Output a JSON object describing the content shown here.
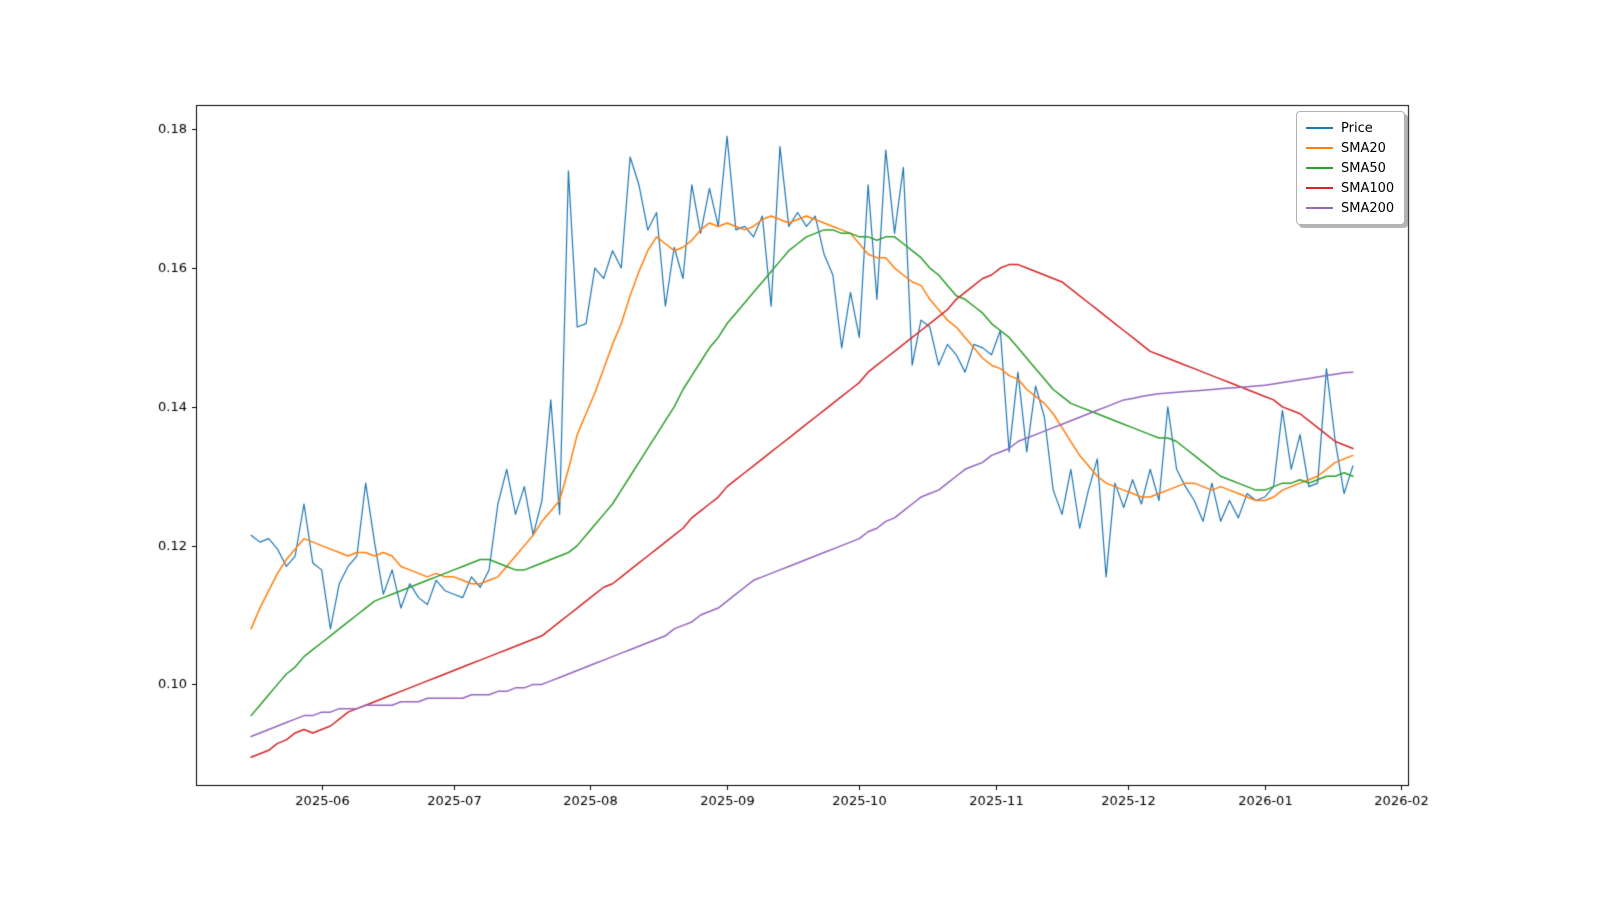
{
  "figure": {
    "background_color": "#ffffff",
    "axes_edge_color": "#000000"
  },
  "chart_data": {
    "type": "line",
    "title": "",
    "xlabel": "",
    "ylabel": "",
    "grid": false,
    "legend_position": "upper right",
    "x_axis": {
      "start_date": "2025-05-16",
      "step_days": 2,
      "domain_days": [
        -12.5,
        262.5
      ],
      "ticks": [
        {
          "label": "2025-06",
          "date": "2025-06-01"
        },
        {
          "label": "2025-07",
          "date": "2025-07-01"
        },
        {
          "label": "2025-08",
          "date": "2025-08-01"
        },
        {
          "label": "2025-09",
          "date": "2025-09-01"
        },
        {
          "label": "2025-10",
          "date": "2025-10-01"
        },
        {
          "label": "2025-11",
          "date": "2025-11-01"
        },
        {
          "label": "2025-12",
          "date": "2025-12-01"
        },
        {
          "label": "2026-01",
          "date": "2026-01-01"
        },
        {
          "label": "2026-02",
          "date": "2026-02-01"
        }
      ]
    },
    "y_axis": {
      "domain": [
        0.0855,
        0.1835
      ],
      "ticks": [
        {
          "label": "0.10",
          "value": 0.1
        },
        {
          "label": "0.12",
          "value": 0.12
        },
        {
          "label": "0.14",
          "value": 0.14
        },
        {
          "label": "0.16",
          "value": 0.16
        },
        {
          "label": "0.18",
          "value": 0.18
        }
      ]
    },
    "dates": [
      "2025-05-16",
      "2025-05-18",
      "2025-05-20",
      "2025-05-22",
      "2025-05-24",
      "2025-05-26",
      "2025-05-28",
      "2025-05-30",
      "2025-06-01",
      "2025-06-03",
      "2025-06-05",
      "2025-06-07",
      "2025-06-09",
      "2025-06-11",
      "2025-06-13",
      "2025-06-15",
      "2025-06-17",
      "2025-06-19",
      "2025-06-21",
      "2025-06-23",
      "2025-06-25",
      "2025-06-27",
      "2025-06-29",
      "2025-07-01",
      "2025-07-03",
      "2025-07-05",
      "2025-07-07",
      "2025-07-09",
      "2025-07-11",
      "2025-07-13",
      "2025-07-15",
      "2025-07-17",
      "2025-07-19",
      "2025-07-21",
      "2025-07-23",
      "2025-07-25",
      "2025-07-27",
      "2025-07-29",
      "2025-07-31",
      "2025-08-02",
      "2025-08-04",
      "2025-08-06",
      "2025-08-08",
      "2025-08-10",
      "2025-08-12",
      "2025-08-14",
      "2025-08-16",
      "2025-08-18",
      "2025-08-20",
      "2025-08-22",
      "2025-08-24",
      "2025-08-26",
      "2025-08-28",
      "2025-08-30",
      "2025-09-01",
      "2025-09-03",
      "2025-09-05",
      "2025-09-07",
      "2025-09-09",
      "2025-09-11",
      "2025-09-13",
      "2025-09-15",
      "2025-09-17",
      "2025-09-19",
      "2025-09-21",
      "2025-09-23",
      "2025-09-25",
      "2025-09-27",
      "2025-09-29",
      "2025-10-01",
      "2025-10-03",
      "2025-10-05",
      "2025-10-07",
      "2025-10-09",
      "2025-10-11",
      "2025-10-13",
      "2025-10-15",
      "2025-10-17",
      "2025-10-19",
      "2025-10-21",
      "2025-10-23",
      "2025-10-25",
      "2025-10-27",
      "2025-10-29",
      "2025-10-31",
      "2025-11-02",
      "2025-11-04",
      "2025-11-06",
      "2025-11-08",
      "2025-11-10",
      "2025-11-12",
      "2025-11-14",
      "2025-11-16",
      "2025-11-18",
      "2025-11-20",
      "2025-11-22",
      "2025-11-24",
      "2025-11-26",
      "2025-11-28",
      "2025-11-30",
      "2025-12-02",
      "2025-12-04",
      "2025-12-06",
      "2025-12-08",
      "2025-12-10",
      "2025-12-12",
      "2025-12-14",
      "2025-12-16",
      "2025-12-18",
      "2025-12-20",
      "2025-12-22",
      "2025-12-24",
      "2025-12-26",
      "2025-12-28",
      "2025-12-30",
      "2026-01-01",
      "2026-01-03",
      "2026-01-05",
      "2026-01-07",
      "2026-01-09",
      "2026-01-11",
      "2026-01-13",
      "2026-01-15",
      "2026-01-17",
      "2026-01-19",
      "2026-01-21"
    ],
    "series": [
      {
        "name": "Price",
        "color": "#1f77b4",
        "line_width": 1.2,
        "values": [
          0.1215,
          0.1205,
          0.121,
          0.1195,
          0.117,
          0.1185,
          0.126,
          0.1175,
          0.1165,
          0.108,
          0.1145,
          0.117,
          0.1185,
          0.129,
          0.1205,
          0.113,
          0.1165,
          0.111,
          0.1145,
          0.1125,
          0.1115,
          0.115,
          0.1135,
          0.113,
          0.1125,
          0.1155,
          0.114,
          0.1165,
          0.126,
          0.131,
          0.1245,
          0.1285,
          0.1215,
          0.1265,
          0.141,
          0.1245,
          0.174,
          0.1515,
          0.152,
          0.16,
          0.1585,
          0.1625,
          0.16,
          0.176,
          0.172,
          0.1655,
          0.168,
          0.1545,
          0.163,
          0.1585,
          0.172,
          0.165,
          0.1715,
          0.166,
          0.179,
          0.1655,
          0.166,
          0.1645,
          0.1675,
          0.1545,
          0.1775,
          0.166,
          0.168,
          0.166,
          0.1675,
          0.162,
          0.159,
          0.1485,
          0.1565,
          0.15,
          0.172,
          0.1555,
          0.177,
          0.165,
          0.1745,
          0.146,
          0.1525,
          0.1515,
          0.146,
          0.149,
          0.1475,
          0.145,
          0.149,
          0.1485,
          0.1475,
          0.151,
          0.1335,
          0.145,
          0.1335,
          0.143,
          0.1385,
          0.128,
          0.1245,
          0.131,
          0.1225,
          0.128,
          0.1325,
          0.1155,
          0.129,
          0.1255,
          0.1295,
          0.126,
          0.131,
          0.1265,
          0.14,
          0.131,
          0.1285,
          0.1265,
          0.1235,
          0.129,
          0.1235,
          0.1265,
          0.124,
          0.1275,
          0.1265,
          0.127,
          0.1285,
          0.1395,
          0.131,
          0.136,
          0.1285,
          0.129,
          0.1455,
          0.135,
          0.1275,
          0.1315
        ]
      },
      {
        "name": "SMA20",
        "color": "#ff7f0e",
        "line_width": 1.5,
        "values": [
          0.108,
          0.111,
          0.1135,
          0.116,
          0.118,
          0.1195,
          0.121,
          0.1205,
          0.12,
          0.1195,
          0.119,
          0.1185,
          0.119,
          0.119,
          0.1185,
          0.119,
          0.1185,
          0.117,
          0.1165,
          0.116,
          0.1155,
          0.116,
          0.1155,
          0.1155,
          0.115,
          0.1145,
          0.1145,
          0.115,
          0.1155,
          0.117,
          0.1185,
          0.12,
          0.1215,
          0.1235,
          0.125,
          0.1265,
          0.131,
          0.136,
          0.139,
          0.142,
          0.1455,
          0.149,
          0.152,
          0.156,
          0.1595,
          0.1625,
          0.1645,
          0.1635,
          0.1625,
          0.163,
          0.164,
          0.1655,
          0.1665,
          0.166,
          0.1665,
          0.166,
          0.1655,
          0.166,
          0.167,
          0.1675,
          0.167,
          0.1665,
          0.167,
          0.1675,
          0.167,
          0.1665,
          0.166,
          0.1655,
          0.165,
          0.1635,
          0.162,
          0.1615,
          0.1615,
          0.16,
          0.159,
          0.158,
          0.1575,
          0.1555,
          0.154,
          0.1525,
          0.1515,
          0.15,
          0.1485,
          0.147,
          0.146,
          0.1455,
          0.1445,
          0.144,
          0.1425,
          0.1415,
          0.1405,
          0.139,
          0.137,
          0.135,
          0.133,
          0.1315,
          0.13,
          0.129,
          0.1285,
          0.128,
          0.1275,
          0.127,
          0.127,
          0.1275,
          0.128,
          0.1285,
          0.129,
          0.129,
          0.1285,
          0.128,
          0.1285,
          0.128,
          0.1275,
          0.127,
          0.1265,
          0.1265,
          0.127,
          0.128,
          0.1285,
          0.129,
          0.1295,
          0.13,
          0.131,
          0.132,
          0.1325,
          0.133
        ]
      },
      {
        "name": "SMA50",
        "color": "#2ca02c",
        "line_width": 1.5,
        "values": [
          0.0955,
          0.097,
          0.0985,
          0.1,
          0.1015,
          0.1025,
          0.104,
          0.105,
          0.106,
          0.107,
          0.108,
          0.109,
          0.11,
          0.111,
          0.112,
          0.1125,
          0.113,
          0.1135,
          0.114,
          0.1145,
          0.115,
          0.1155,
          0.116,
          0.1165,
          0.117,
          0.1175,
          0.118,
          0.118,
          0.1175,
          0.117,
          0.1165,
          0.1165,
          0.117,
          0.1175,
          0.118,
          0.1185,
          0.119,
          0.12,
          0.1215,
          0.123,
          0.1245,
          0.126,
          0.128,
          0.13,
          0.132,
          0.134,
          0.136,
          0.138,
          0.14,
          0.1425,
          0.1445,
          0.1465,
          0.1485,
          0.15,
          0.152,
          0.1535,
          0.155,
          0.1565,
          0.158,
          0.1595,
          0.161,
          0.1625,
          0.1635,
          0.1645,
          0.165,
          0.1655,
          0.1655,
          0.165,
          0.165,
          0.1645,
          0.1645,
          0.164,
          0.1645,
          0.1645,
          0.1635,
          0.1625,
          0.1615,
          0.16,
          0.159,
          0.1575,
          0.156,
          0.1555,
          0.1545,
          0.1535,
          0.152,
          0.151,
          0.15,
          0.1485,
          0.147,
          0.1455,
          0.144,
          0.1425,
          0.1415,
          0.1405,
          0.14,
          0.1395,
          0.139,
          0.1385,
          0.138,
          0.1375,
          0.137,
          0.1365,
          0.136,
          0.1355,
          0.1355,
          0.135,
          0.134,
          0.133,
          0.132,
          0.131,
          0.13,
          0.1295,
          0.129,
          0.1285,
          0.128,
          0.128,
          0.1285,
          0.129,
          0.129,
          0.1295,
          0.129,
          0.1295,
          0.13,
          0.13,
          0.1305,
          0.13
        ]
      },
      {
        "name": "SMA100",
        "color": "#d62728",
        "line_width": 1.5,
        "values": [
          0.0895,
          0.09,
          0.0905,
          0.0915,
          0.092,
          0.093,
          0.0935,
          0.093,
          0.0935,
          0.094,
          0.095,
          0.096,
          0.0965,
          0.097,
          0.0975,
          0.098,
          0.0985,
          0.099,
          0.0995,
          0.1,
          0.1005,
          0.101,
          0.1015,
          0.102,
          0.1025,
          0.103,
          0.1035,
          0.104,
          0.1045,
          0.105,
          0.1055,
          0.106,
          0.1065,
          0.107,
          0.108,
          0.109,
          0.11,
          0.111,
          0.112,
          0.113,
          0.114,
          0.1145,
          0.1155,
          0.1165,
          0.1175,
          0.1185,
          0.1195,
          0.1205,
          0.1215,
          0.1225,
          0.124,
          0.125,
          0.126,
          0.127,
          0.1285,
          0.1295,
          0.1305,
          0.1315,
          0.1325,
          0.1335,
          0.1345,
          0.1355,
          0.1365,
          0.1375,
          0.1385,
          0.1395,
          0.1405,
          0.1415,
          0.1425,
          0.1435,
          0.145,
          0.146,
          0.147,
          0.148,
          0.149,
          0.15,
          0.151,
          0.152,
          0.153,
          0.154,
          0.1555,
          0.1565,
          0.1575,
          0.1585,
          0.159,
          0.16,
          0.1605,
          0.1605,
          0.16,
          0.1595,
          0.159,
          0.1585,
          0.158,
          0.157,
          0.156,
          0.155,
          0.154,
          0.153,
          0.152,
          0.151,
          0.15,
          0.149,
          0.148,
          0.1475,
          0.147,
          0.1465,
          0.146,
          0.1455,
          0.145,
          0.1445,
          0.144,
          0.1435,
          0.143,
          0.1425,
          0.142,
          0.1415,
          0.141,
          0.14,
          0.1395,
          0.139,
          0.138,
          0.137,
          0.136,
          0.135,
          0.1345,
          0.134
        ]
      },
      {
        "name": "SMA200",
        "color": "#9467bd",
        "line_width": 1.5,
        "values": [
          0.0925,
          0.093,
          0.0935,
          0.094,
          0.0945,
          0.095,
          0.0955,
          0.0955,
          0.096,
          0.096,
          0.0965,
          0.0965,
          0.0965,
          0.097,
          0.097,
          0.097,
          0.097,
          0.0975,
          0.0975,
          0.0975,
          0.098,
          0.098,
          0.098,
          0.098,
          0.098,
          0.0985,
          0.0985,
          0.0985,
          0.099,
          0.099,
          0.0995,
          0.0995,
          0.1,
          0.1,
          0.1005,
          0.101,
          0.1015,
          0.102,
          0.1025,
          0.103,
          0.1035,
          0.104,
          0.1045,
          0.105,
          0.1055,
          0.106,
          0.1065,
          0.107,
          0.108,
          0.1085,
          0.109,
          0.11,
          0.1105,
          0.111,
          0.112,
          0.113,
          0.114,
          0.115,
          0.1155,
          0.116,
          0.1165,
          0.117,
          0.1175,
          0.118,
          0.1185,
          0.119,
          0.1195,
          0.12,
          0.1205,
          0.121,
          0.122,
          0.1225,
          0.1235,
          0.124,
          0.125,
          0.126,
          0.127,
          0.1275,
          0.128,
          0.129,
          0.13,
          0.131,
          0.1315,
          0.132,
          0.133,
          0.1335,
          0.134,
          0.135,
          0.1355,
          0.136,
          0.1365,
          0.137,
          0.1375,
          0.138,
          0.1385,
          0.139,
          0.1395,
          0.14,
          0.1405,
          0.141,
          0.1412,
          0.1415,
          0.1417,
          0.1419,
          0.142,
          0.1421,
          0.1422,
          0.1423,
          0.1424,
          0.1425,
          0.1426,
          0.1427,
          0.1428,
          0.1429,
          0.143,
          0.1431,
          0.1433,
          0.1435,
          0.1437,
          0.1439,
          0.1441,
          0.1443,
          0.1445,
          0.1447,
          0.1449,
          0.145
        ]
      }
    ]
  }
}
